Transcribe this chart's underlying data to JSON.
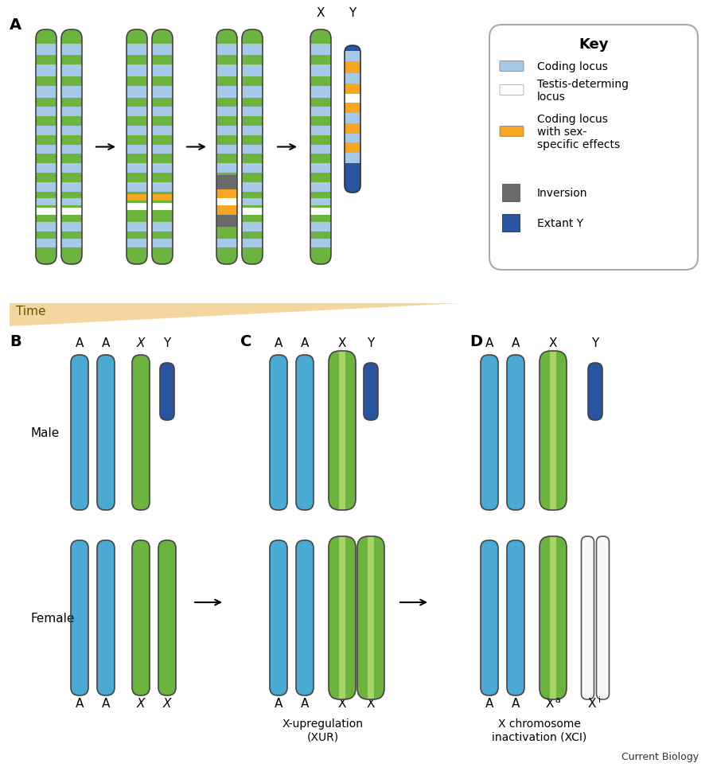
{
  "colors": {
    "green": "#6db33f",
    "blue_chr": "#4BAAD3",
    "light_blue_band": "#a8c8e8",
    "orange_band": "#f5a623",
    "white_band": "#ffffff",
    "gray_band": "#6a6a6a",
    "dark_blue_y": "#2955a0",
    "bg": "#ffffff",
    "time_triangle": "#f5d5a0",
    "key_border": "#aaaaaa",
    "xur_stripe": "#a8d466",
    "xur_body": "#6db33f"
  },
  "panel_a_label": "A",
  "panel_b_label": "B",
  "panel_c_label": "C",
  "panel_d_label": "D",
  "key_title": "Key",
  "time_label": "Time",
  "bottom_label": "Current Biology",
  "male_label": "Male",
  "female_label": "Female",
  "xur_label": "X-upregulation\n(XUR)",
  "xci_label": "X chromosome\ninactivation (XCI)"
}
